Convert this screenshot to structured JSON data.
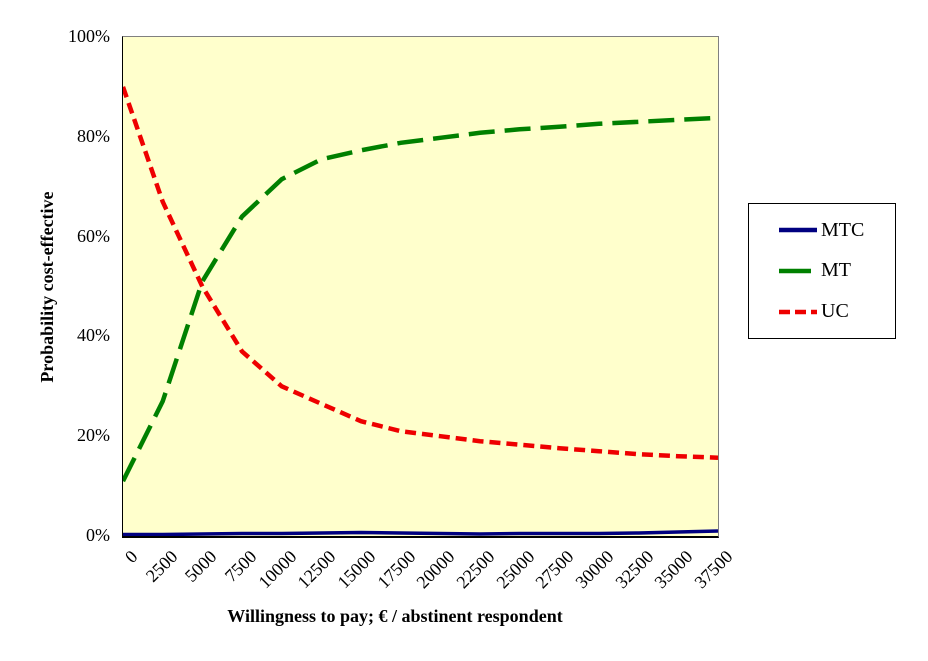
{
  "chart_data": {
    "type": "line",
    "title": "",
    "xlabel": "Willingness to pay; € / abstinent respondent",
    "ylabel": "Probability cost-effective",
    "categories": [
      "0",
      "2500",
      "5000",
      "7500",
      "10000",
      "12500",
      "15000",
      "17500",
      "20000",
      "22500",
      "25000",
      "27500",
      "30000",
      "32500",
      "35000",
      "37500"
    ],
    "x": [
      0,
      2500,
      5000,
      7500,
      10000,
      12500,
      15000,
      17500,
      20000,
      22500,
      25000,
      27500,
      30000,
      32500,
      35000,
      37500
    ],
    "y_ticks": [
      0,
      20,
      40,
      60,
      80,
      100
    ],
    "y_tick_labels": [
      "0%",
      "20%",
      "40%",
      "60%",
      "80%",
      "100%"
    ],
    "ylim": [
      0,
      100
    ],
    "grid": "off",
    "legend_position": "right",
    "plot_background": "#FFFFCC",
    "series": [
      {
        "name": "MTC",
        "color": "#000080",
        "dash": "solid",
        "legend_dash": "solid",
        "width": 3.5,
        "values": [
          0.3,
          0.3,
          0.4,
          0.5,
          0.5,
          0.6,
          0.7,
          0.6,
          0.5,
          0.4,
          0.5,
          0.5,
          0.5,
          0.6,
          0.8,
          1.0
        ]
      },
      {
        "name": "MT",
        "color": "#008000",
        "dash": "26 10",
        "legend_dash": "32 6",
        "width": 4.5,
        "values": [
          11,
          27,
          51,
          64,
          71.5,
          75.5,
          77.3,
          78.8,
          79.8,
          80.8,
          81.5,
          82,
          82.6,
          83,
          83.4,
          83.8
        ]
      },
      {
        "name": "UC",
        "color": "#EE0000",
        "dash": "11 6",
        "legend_dash": "11 5",
        "width": 4.5,
        "values": [
          90,
          67,
          50,
          37,
          30,
          26.5,
          23,
          21,
          20,
          19,
          18.3,
          17.6,
          17,
          16.4,
          16,
          15.7
        ]
      }
    ]
  },
  "layout_labels": {
    "legend_names": [
      "MTC",
      "MT",
      "UC"
    ]
  }
}
